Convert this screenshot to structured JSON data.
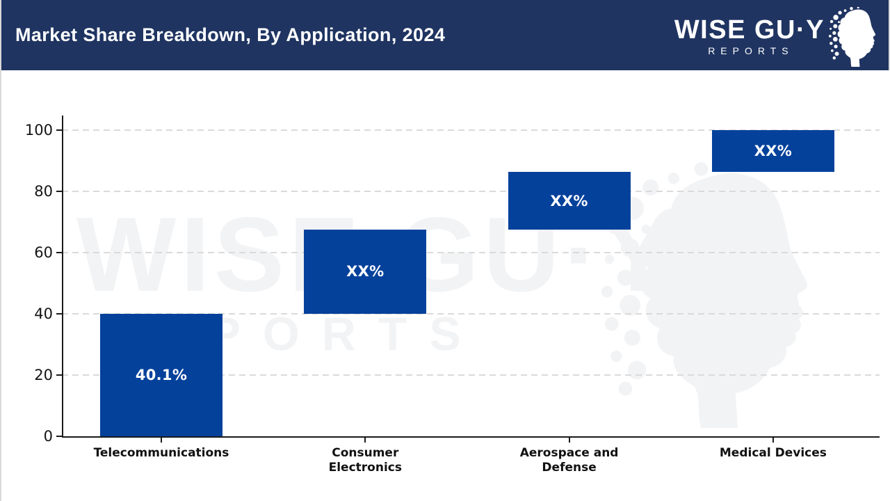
{
  "page": {
    "background": "#ffffff",
    "border_color": "#d9d9d9"
  },
  "header": {
    "background": "#1f3461",
    "title": "Market Share Breakdown, By Application, 2024",
    "logo": {
      "line1": "WISE GU·Y",
      "line2": "REPORTS"
    }
  },
  "watermark": {
    "line1": "WISE GU·Y",
    "line2": "REPORTS",
    "color": "#f2f3f5"
  },
  "chart_data": {
    "type": "bar",
    "variant": "waterfall-stacked-segments",
    "title": "Market Share Breakdown, By Application, 2024",
    "categories": [
      "Telecommunications",
      "Consumer Electronics",
      "Aerospace and Defense",
      "Medical Devices"
    ],
    "category_display_lines": [
      [
        "Telecommunications"
      ],
      [
        "Consumer",
        "Electronics"
      ],
      [
        "Aerospace and",
        "Defense"
      ],
      [
        "Medical Devices"
      ]
    ],
    "segments": [
      {
        "category": "Telecommunications",
        "start": 0,
        "end": 40.1,
        "value": 40.1,
        "label": "40.1%"
      },
      {
        "category": "Consumer Electronics",
        "start": 40.1,
        "end": 67.5,
        "value": 27.4,
        "label": "XX%"
      },
      {
        "category": "Aerospace and Defense",
        "start": 67.5,
        "end": 86.3,
        "value": 18.8,
        "label": "XX%"
      },
      {
        "category": "Medical Devices",
        "start": 86.3,
        "end": 100,
        "value": 13.7,
        "label": "XX%"
      }
    ],
    "yticks": [
      0,
      20,
      40,
      60,
      80,
      100
    ],
    "ylim": [
      0,
      100
    ],
    "xlabel": "",
    "ylabel": "",
    "legend": null,
    "grid": {
      "horizontal": true,
      "style": "dashed",
      "color": "#dadada"
    },
    "bar_color": "#04419b",
    "bar_label_color": "#ffffff",
    "axis_color": "#1a1a1a"
  }
}
